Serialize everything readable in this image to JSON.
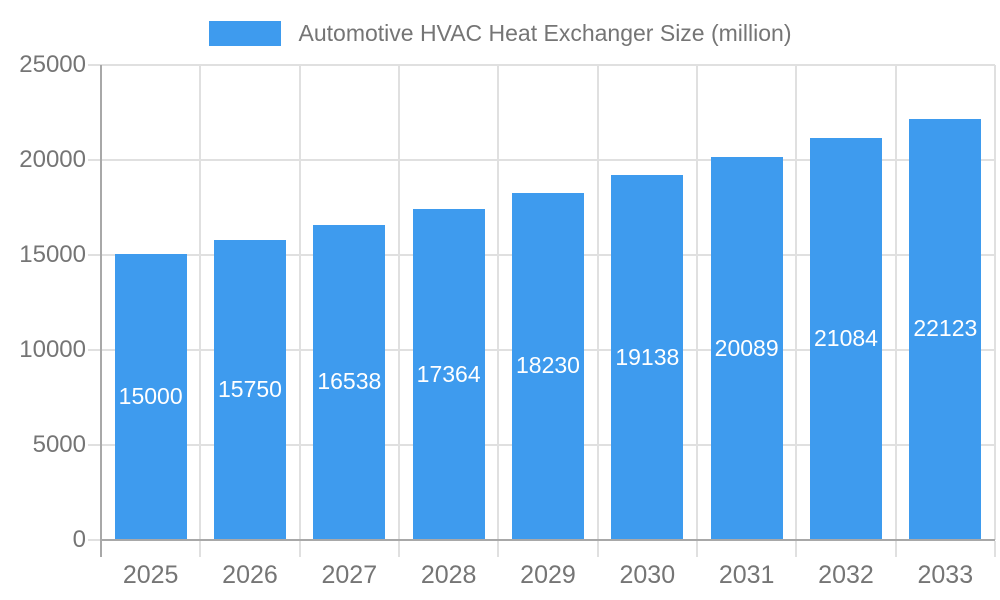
{
  "legend": {
    "label": "Automotive HVAC Heat Exchanger Size (million)"
  },
  "chart_data": {
    "type": "bar",
    "title": "Automotive HVAC Heat Exchanger Size (million)",
    "categories": [
      "2025",
      "2026",
      "2027",
      "2028",
      "2029",
      "2030",
      "2031",
      "2032",
      "2033"
    ],
    "values": [
      15000,
      15750,
      16538,
      17364,
      18230,
      19138,
      20089,
      21084,
      22123
    ],
    "xlabel": "",
    "ylabel": "",
    "ylim": [
      0,
      25000
    ],
    "y_ticks": [
      0,
      5000,
      10000,
      15000,
      20000,
      25000
    ],
    "grid": true,
    "legend_position": "top",
    "colors": {
      "bar": "#3e9bee",
      "value_label": "#ffffff",
      "axis": "#a8a8a8",
      "grid": "#e0e0e0",
      "text": "#757575"
    }
  }
}
